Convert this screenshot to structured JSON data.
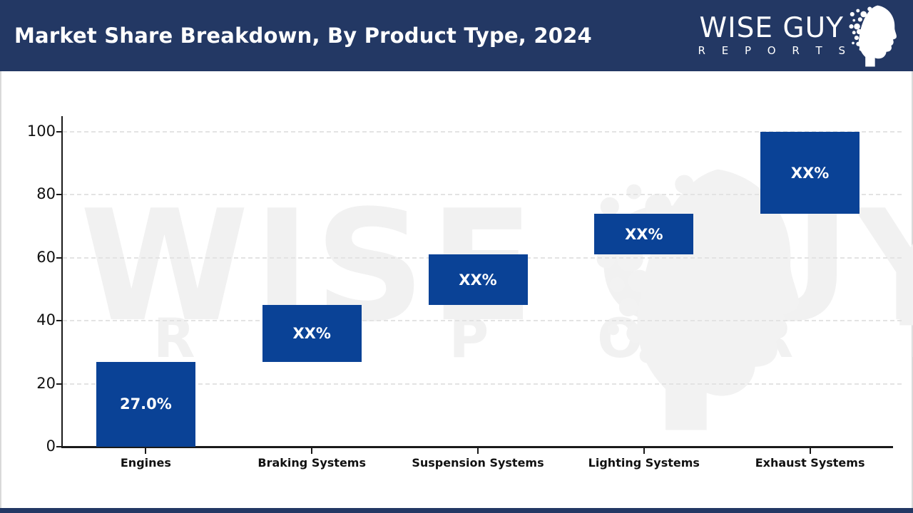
{
  "header": {
    "title": "Market Share Breakdown, By Product Type, 2024",
    "bg_color": "#233864",
    "logo": {
      "line1": "WISE GUY",
      "line2": "R E P O R T S"
    }
  },
  "watermark": {
    "line1": "WISE GUY",
    "line2": "REPORTS"
  },
  "footer": {
    "bar_color": "#233864"
  },
  "chart_data": {
    "type": "bar",
    "subtype": "waterfall-stacked-segments",
    "title": "Market Share Breakdown, By Product Type, 2024",
    "categories": [
      "Engines",
      "Braking Systems",
      "Suspension Systems",
      "Lighting Systems",
      "Exhaust Systems"
    ],
    "segments": [
      {
        "category": "Engines",
        "start": 0,
        "end": 27,
        "label": "27.0%"
      },
      {
        "category": "Braking Systems",
        "start": 27,
        "end": 45,
        "label": "XX%"
      },
      {
        "category": "Suspension Systems",
        "start": 45,
        "end": 61,
        "label": "XX%"
      },
      {
        "category": "Lighting Systems",
        "start": 61,
        "end": 74,
        "label": "XX%"
      },
      {
        "category": "Exhaust Systems",
        "start": 74,
        "end": 100,
        "label": "XX%"
      }
    ],
    "xlabel": "",
    "ylabel": "",
    "yticks": [
      0,
      20,
      40,
      60,
      80,
      100
    ],
    "ylim": [
      0,
      105
    ],
    "grid": true,
    "grid_style": "dashed",
    "legend": "none",
    "bar_color": "#0a4296",
    "axis_color": "#1a1a1a",
    "grid_color": "#e3e3e3"
  }
}
